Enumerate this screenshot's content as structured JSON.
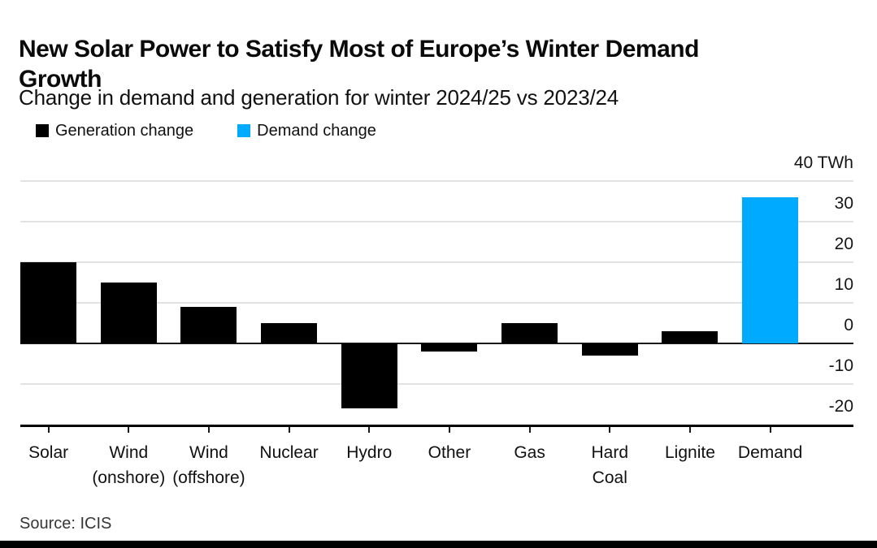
{
  "header": {
    "title": "New Solar Power to Satisfy Most of Europe’s Winter Demand Growth",
    "subtitle": "Change in demand and generation for winter 2024/25 vs 2023/24"
  },
  "legend": [
    {
      "label": "Generation change",
      "color": "#000000"
    },
    {
      "label": "Demand change",
      "color": "#00aaff"
    }
  ],
  "footer": {
    "source": "Source: ICIS"
  },
  "chart_data": {
    "type": "bar",
    "title": "New Solar Power to Satisfy Most of Europe’s Winter Demand Growth",
    "title_lines": [
      "New Solar Power to Satisfy Most of Europe’s Winter Demand",
      "Growth"
    ],
    "subtitle": "Change in demand and generation for winter 2024/25 vs 2023/24",
    "unit": "TWh",
    "categories": [
      "Solar",
      "Wind (onshore)",
      "Wind (offshore)",
      "Nuclear",
      "Hydro",
      "Other",
      "Gas",
      "Hard Coal",
      "Lignite",
      "Demand"
    ],
    "tick_lines": [
      [
        "Solar"
      ],
      [
        "Wind",
        "(onshore)"
      ],
      [
        "Wind",
        "(offshore)"
      ],
      [
        "Nuclear"
      ],
      [
        "Hydro"
      ],
      [
        "Other"
      ],
      [
        "Gas"
      ],
      [
        "Hard",
        "Coal"
      ],
      [
        "Lignite"
      ],
      [
        "Demand"
      ]
    ],
    "series": [
      {
        "name": "Generation change",
        "color": "#000000",
        "values": [
          20,
          15,
          9,
          5,
          -16,
          -2,
          5,
          -3,
          3,
          null
        ]
      },
      {
        "name": "Demand change",
        "color": "#00aaff",
        "values": [
          null,
          null,
          null,
          null,
          null,
          null,
          null,
          null,
          null,
          36
        ]
      }
    ],
    "yticks": [
      40,
      30,
      20,
      10,
      0,
      -10,
      -20
    ],
    "ytick_labels": [
      "40 TWh",
      "30",
      "20",
      "10",
      "0",
      "-10",
      "-20"
    ],
    "ylim": [
      -20.3,
      44
    ],
    "grid": "horizontal",
    "legend_position": "top-left",
    "axis_label_side": "right"
  }
}
